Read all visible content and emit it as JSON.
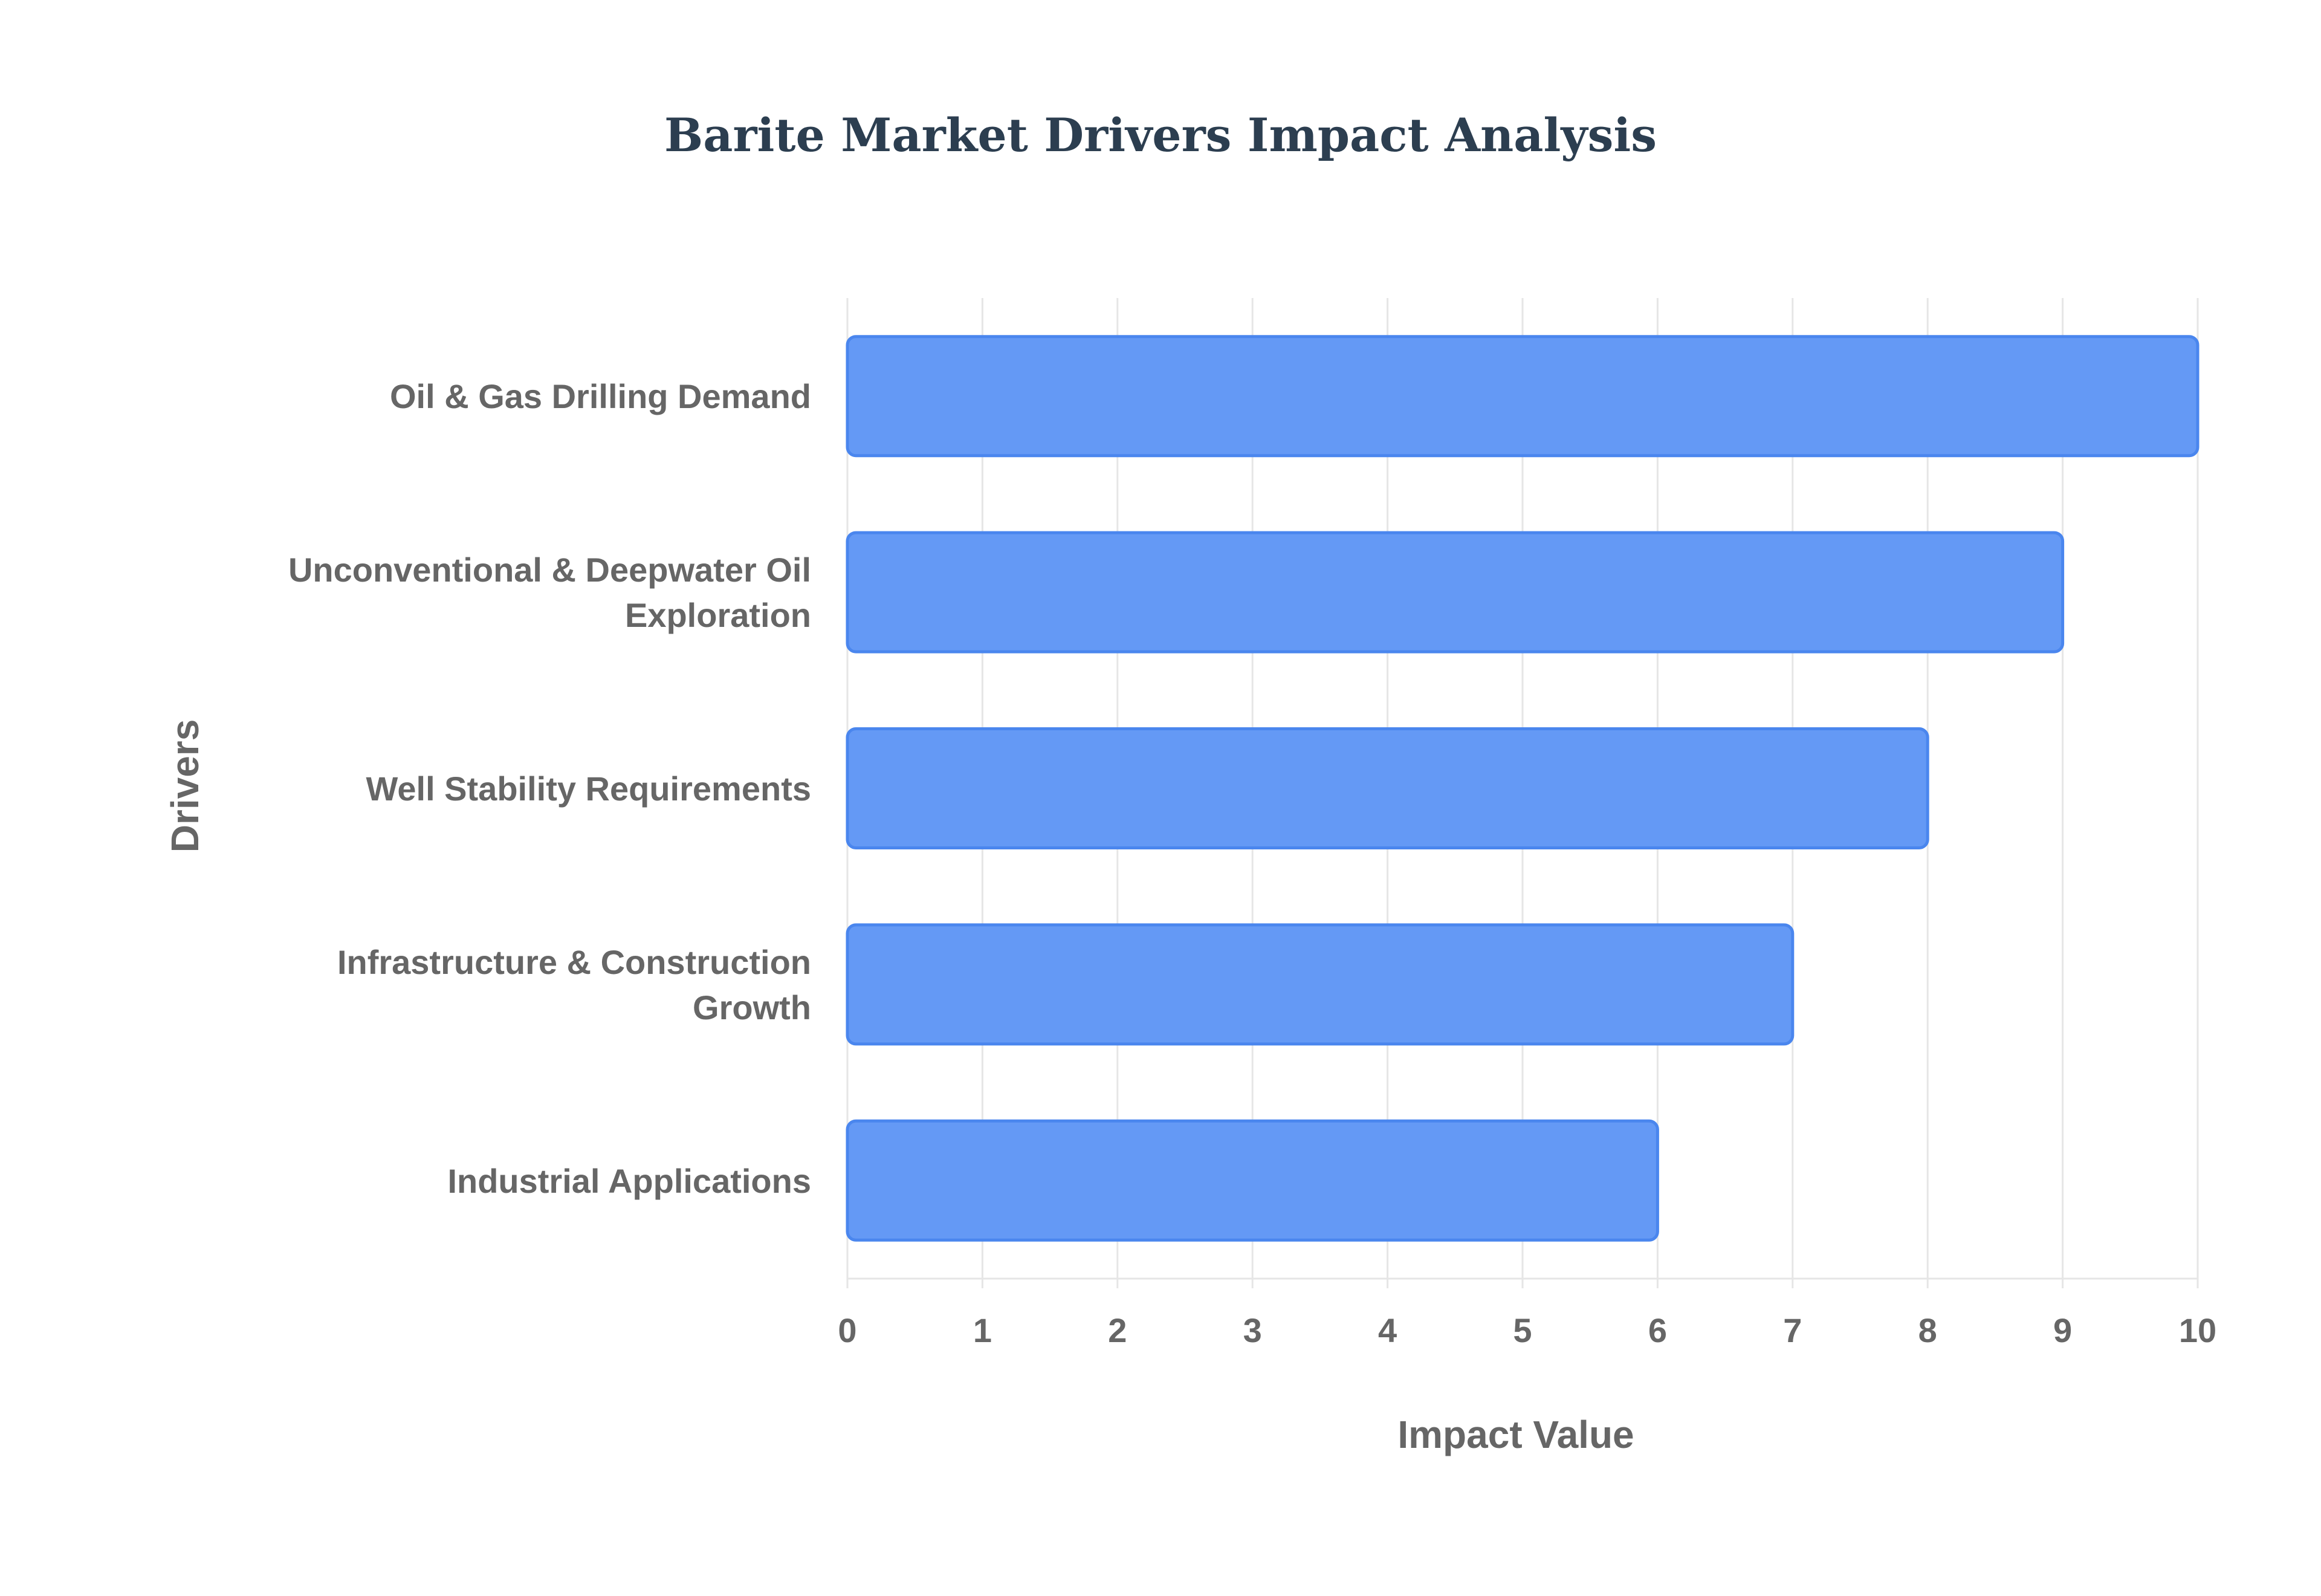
{
  "chart_data": {
    "type": "bar",
    "orientation": "horizontal",
    "title": "Barite Market Drivers Impact Analysis",
    "xlabel": "Impact Value",
    "ylabel": "Drivers",
    "categories": [
      "Oil & Gas Drilling Demand",
      "Unconventional & Deepwater Oil Exploration",
      "Well Stability Requirements",
      "Infrastructure & Construction Growth",
      "Industrial Applications"
    ],
    "category_lines": [
      [
        "Oil & Gas Drilling Demand"
      ],
      [
        "Unconventional & Deepwater Oil",
        "Exploration"
      ],
      [
        "Well Stability Requirements"
      ],
      [
        "Infrastructure & Construction",
        "Growth"
      ],
      [
        "Industrial Applications"
      ]
    ],
    "values": [
      10,
      9,
      8,
      7,
      6
    ],
    "xlim": [
      0,
      10
    ],
    "xticks": [
      "0",
      "1",
      "2",
      "3",
      "4",
      "5",
      "6",
      "7",
      "8",
      "9",
      "10"
    ],
    "grid": true,
    "legend": "none",
    "bar_color": "#6499f5",
    "bar_border_color": "#4a86ee"
  }
}
